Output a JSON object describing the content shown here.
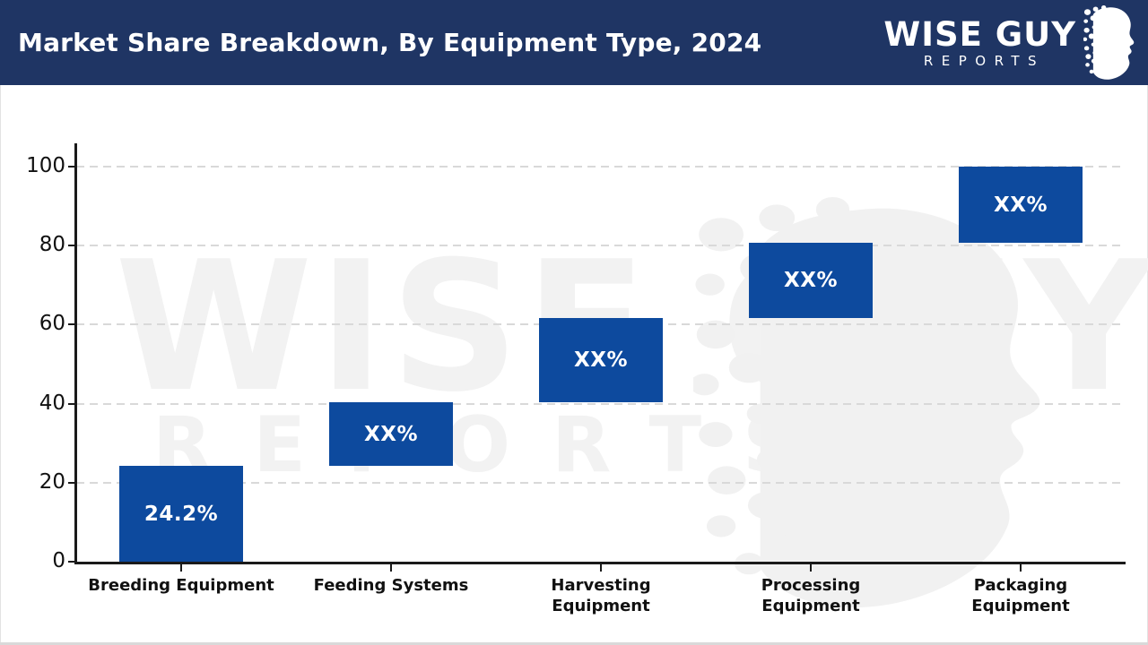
{
  "theme": {
    "header_bg": "#1f3564",
    "bar_color": "#0d4a9e",
    "grid_color": "#d9d9d9",
    "axis_color": "#1a1a1a",
    "watermark_color": "#f2f2f2",
    "title_color": "#ffffff"
  },
  "header": {
    "title": "Market Share Breakdown, By Equipment Type, 2024",
    "brand": {
      "name": "WISE GUY",
      "sub": "REPORTS"
    }
  },
  "watermark": {
    "line1": "WISE GUY",
    "line2": "REPORTS"
  },
  "chart_data": {
    "type": "bar",
    "subtype": "waterfall",
    "title": "Market Share Breakdown, By Equipment Type, 2024",
    "xlabel": "",
    "ylabel": "",
    "ylim": [
      0,
      100
    ],
    "yticks": [
      0,
      20,
      40,
      60,
      80,
      100
    ],
    "grid": "horizontal-dashed",
    "legend": "none",
    "categories": [
      "Breeding Equipment",
      "Feeding Systems",
      "Harvesting Equipment",
      "Processing Equipment",
      "Packaging Equipment"
    ],
    "segments": [
      {
        "category": "Breeding Equipment",
        "category_display": "Breeding Equipment",
        "start": 0,
        "end": 24.2,
        "value": 24.2,
        "label": "24.2%"
      },
      {
        "category": "Feeding Systems",
        "category_display": "Feeding Systems",
        "start": 24.2,
        "end": 40.3,
        "value": 16.1,
        "label": "XX%"
      },
      {
        "category": "Harvesting Equipment",
        "category_display": "Harvesting\nEquipment",
        "start": 40.3,
        "end": 61.6,
        "value": 21.3,
        "label": "XX%"
      },
      {
        "category": "Processing Equipment",
        "category_display": "Processing\nEquipment",
        "start": 61.6,
        "end": 80.7,
        "value": 19.1,
        "label": "XX%"
      },
      {
        "category": "Packaging Equipment",
        "category_display": "Packaging\nEquipment",
        "start": 80.7,
        "end": 100,
        "value": 19.3,
        "label": "XX%"
      }
    ]
  }
}
